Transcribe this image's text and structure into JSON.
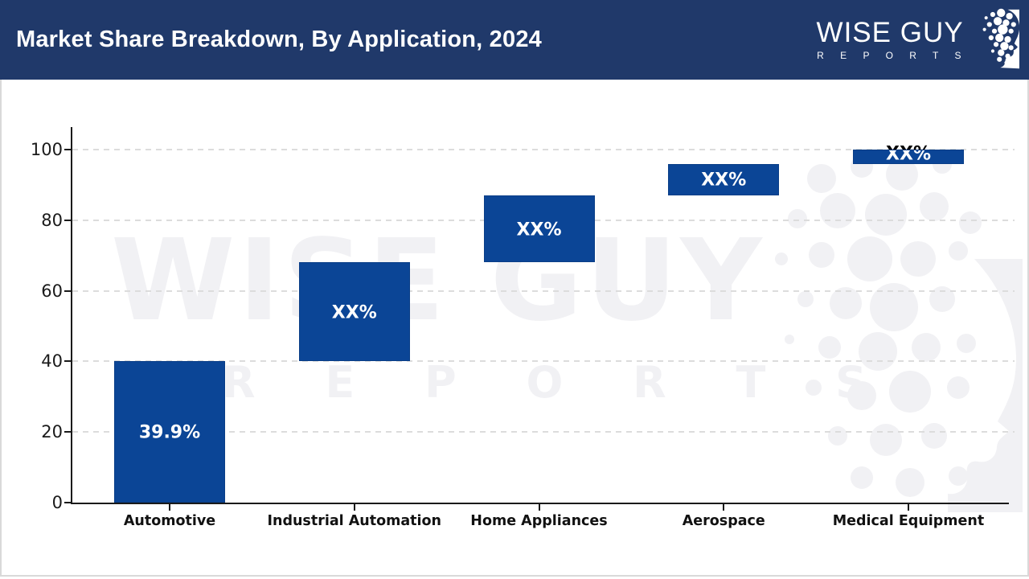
{
  "header": {
    "title": "Market Share Breakdown, By Application, 2024",
    "brand": {
      "line1": "WISE GUY",
      "line2": "R E P O R T S"
    }
  },
  "watermark": {
    "line1": "WISE GUY",
    "line2": "R E P O R T S"
  },
  "chart_data": {
    "type": "bar",
    "variant": "waterfall",
    "title": "Market Share Breakdown, By Application, 2024",
    "categories": [
      "Automotive",
      "Industrial Automation",
      "Home Appliances",
      "Aerospace",
      "Medical Equipment"
    ],
    "segments": [
      {
        "category": "Automotive",
        "start": 0,
        "end": 40,
        "label": "39.9%"
      },
      {
        "category": "Industrial Automation",
        "start": 40,
        "end": 68,
        "label": "XX%"
      },
      {
        "category": "Home Appliances",
        "start": 68,
        "end": 87,
        "label": "XX%"
      },
      {
        "category": "Aerospace",
        "start": 87,
        "end": 96,
        "label": "XX%"
      },
      {
        "category": "Medical Equipment",
        "start": 96,
        "end": 100,
        "label": "XX%"
      }
    ],
    "yticks": [
      0,
      20,
      40,
      60,
      80,
      100
    ],
    "ylim": [
      0,
      106
    ],
    "xlabel": "",
    "ylabel": "",
    "grid": "horizontal-dashed",
    "legend": "none",
    "bar_color": "#0b4596",
    "bar_label_color": "#ffffff",
    "grid_color": "#dcdcdc",
    "axis_color": "#1a1a1a",
    "header_color": "#20396a",
    "watermark_color": "#f1f1f4"
  }
}
